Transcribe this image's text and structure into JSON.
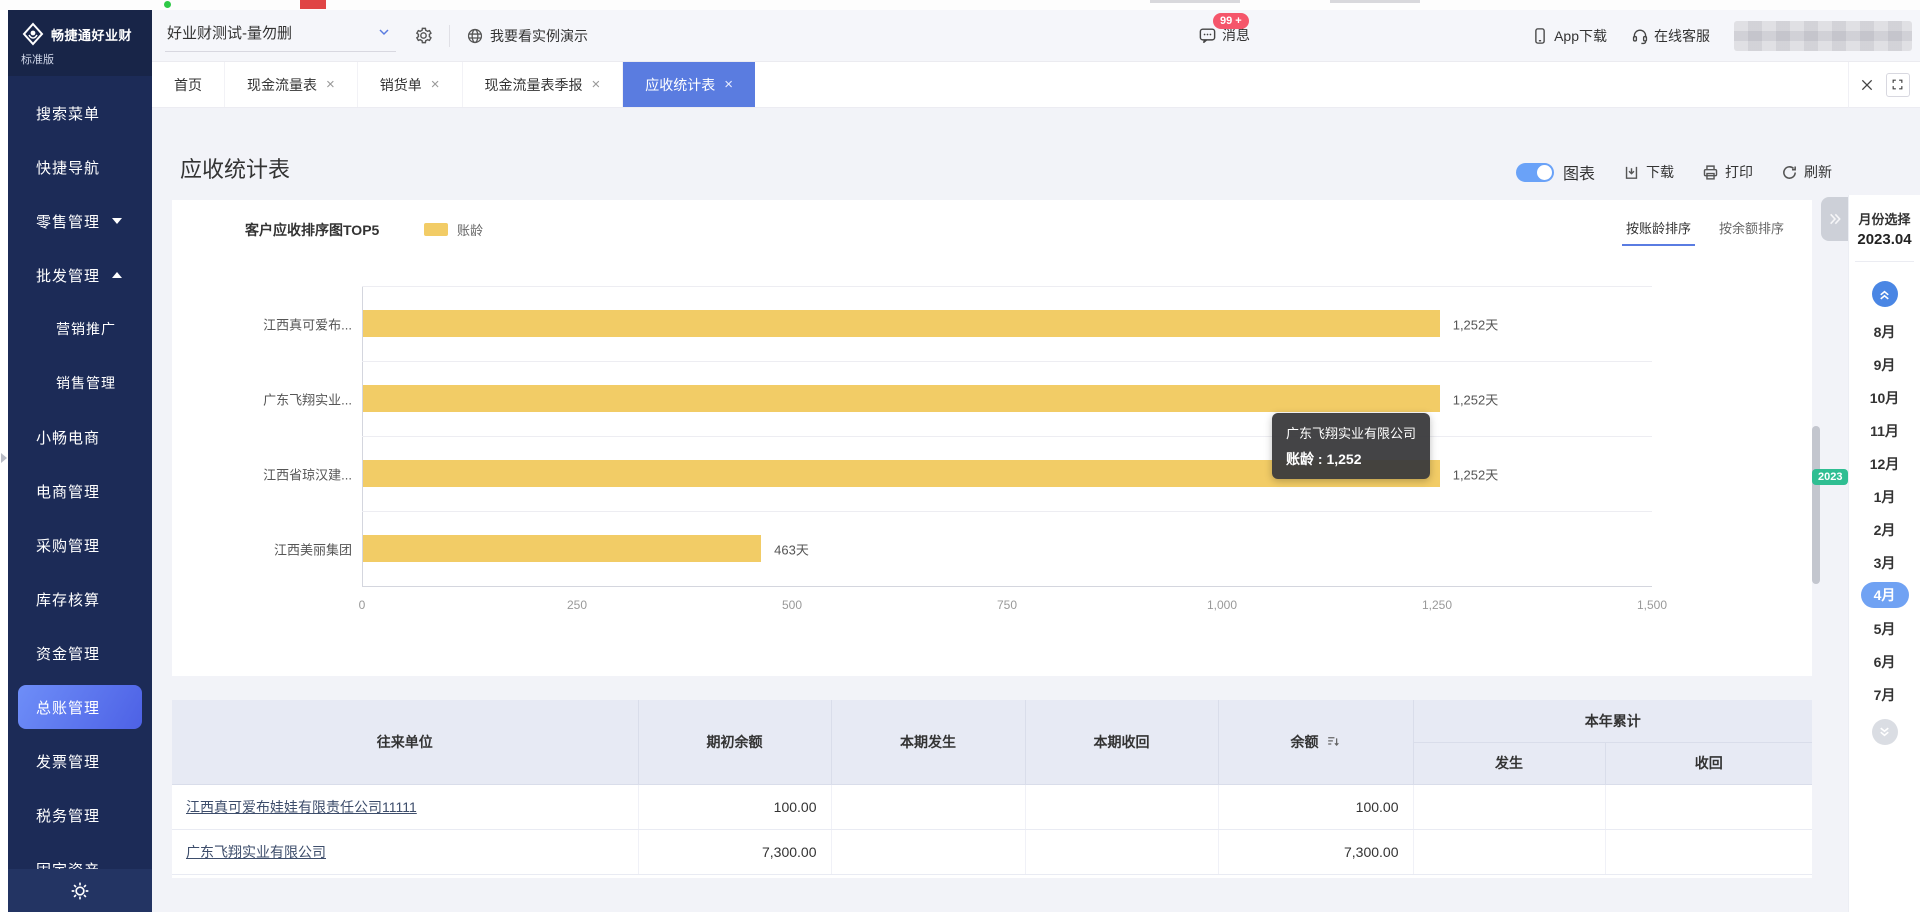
{
  "brand": {
    "name": "畅捷通好业财",
    "edition": "标准版"
  },
  "topbar": {
    "workspace": "好业财测试-量勿删",
    "demo_label": "我要看实例演示",
    "messages_label": "消息",
    "messages_badge": "99 +",
    "app_download_label": "App下载",
    "support_label": "在线客服"
  },
  "sidebar": {
    "items": [
      {
        "label": "搜索菜单"
      },
      {
        "label": "快捷导航"
      },
      {
        "label": "零售管理",
        "arrow": "down"
      },
      {
        "label": "批发管理",
        "arrow": "up"
      },
      {
        "label": "营销推广",
        "sub": true
      },
      {
        "label": "销售管理",
        "sub": true
      },
      {
        "label": "小畅电商"
      },
      {
        "label": "电商管理"
      },
      {
        "label": "采购管理"
      },
      {
        "label": "库存核算"
      },
      {
        "label": "资金管理"
      },
      {
        "label": "总账管理",
        "active": true
      },
      {
        "label": "发票管理"
      },
      {
        "label": "税务管理"
      },
      {
        "label": "固定资产",
        "clipped": true
      }
    ]
  },
  "tabs": {
    "items": [
      {
        "label": "首页",
        "closable": false,
        "active": false
      },
      {
        "label": "现金流量表",
        "closable": true,
        "active": false
      },
      {
        "label": "销货单",
        "closable": true,
        "active": false
      },
      {
        "label": "现金流量表季报",
        "closable": true,
        "active": false
      },
      {
        "label": "应收统计表",
        "closable": true,
        "active": true
      }
    ]
  },
  "toolbar": {
    "title": "应收统计表",
    "chart_toggle_label": "图表",
    "download_label": "下载",
    "print_label": "打印",
    "refresh_label": "刷新"
  },
  "chart": {
    "title": "客户应收排序图TOP5",
    "legend": "账龄",
    "sort_tabs": [
      {
        "label": "按账龄排序",
        "active": true
      },
      {
        "label": "按余额排序",
        "active": false
      }
    ]
  },
  "chart_data": {
    "type": "bar",
    "orientation": "horizontal",
    "title": "客户应收排序图TOP5",
    "series_name": "账龄",
    "categories": [
      "江西真可爱布...",
      "广东飞翔实业...",
      "江西省琼汉建...",
      "江西美丽集团"
    ],
    "values": [
      1252,
      1252,
      1252,
      463
    ],
    "value_labels": [
      "1,252天",
      "1,252天",
      "1,252天",
      "463天"
    ],
    "x_ticks": [
      "0",
      "250",
      "500",
      "750",
      "1,000",
      "1,250",
      "1,500"
    ],
    "xlim": [
      0,
      1500
    ],
    "unit": "天",
    "legend_position": "top",
    "grid": "category-split-lines"
  },
  "tooltip": {
    "line1": "广东飞翔实业有限公司",
    "line2": "账龄 : 1,252"
  },
  "month_panel": {
    "title": "月份选择",
    "current": "2023.04",
    "year_badge": "2023",
    "months": [
      "8月",
      "9月",
      "10月",
      "11月",
      "12月",
      "1月",
      "2月",
      "3月",
      "4月",
      "5月",
      "6月",
      "7月"
    ],
    "active_month": "4月"
  },
  "table": {
    "headers": {
      "col1": "往来单位",
      "col2": "期初余额",
      "col3": "本期发生",
      "col4": "本期收回",
      "col5": "余额",
      "group": "本年累计",
      "sub1": "发生",
      "sub2": "收回"
    },
    "rows": [
      {
        "name": "江西真可爱布娃娃有限责任公司11111",
        "opening": "100.00",
        "period_incur": "",
        "period_recover": "",
        "balance": "100.00",
        "year_incur": "",
        "year_recover": ""
      },
      {
        "name": "广东飞翔实业有限公司",
        "opening": "7,300.00",
        "period_incur": "",
        "period_recover": "",
        "balance": "7,300.00",
        "year_incur": "",
        "year_recover": ""
      }
    ]
  },
  "colors": {
    "accent": "#5a7ce0",
    "bar": "#f2cc66",
    "sidebar": "#1c2b57",
    "badge_red": "#f5566b",
    "month_active": "#70a2f3",
    "year_badge_green": "#2fbe92"
  }
}
